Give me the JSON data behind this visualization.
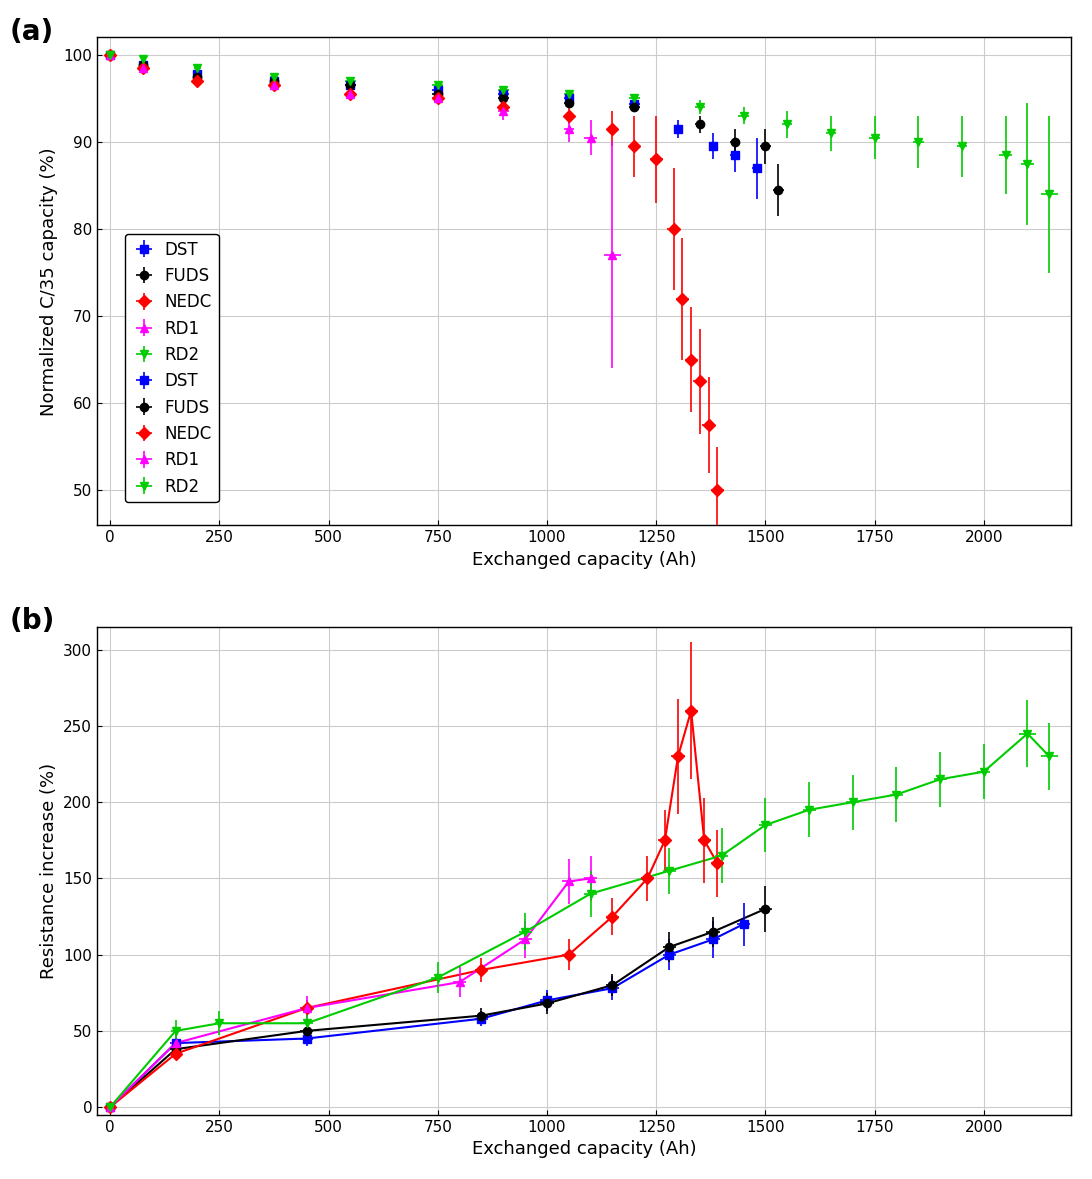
{
  "panel_a": {
    "xlabel": "Exchanged capacity (Ah)",
    "ylabel": "Normalized C/35 capacity (%)",
    "ylim": [
      46,
      102
    ],
    "xlim": [
      -30,
      2200
    ],
    "yticks": [
      50,
      60,
      70,
      80,
      90,
      100
    ],
    "xticks": [
      0,
      250,
      500,
      750,
      1000,
      1250,
      1500,
      1750,
      2000
    ],
    "DST": {
      "color": "#0000FF",
      "marker": "s",
      "x": [
        0,
        75,
        200,
        375,
        550,
        750,
        900,
        1050,
        1200,
        1300,
        1380,
        1430,
        1480
      ],
      "y": [
        100,
        98.8,
        97.8,
        97.0,
        96.5,
        96.0,
        95.5,
        95.0,
        94.3,
        91.5,
        89.5,
        88.5,
        87.0
      ],
      "xerr": [
        0,
        5,
        8,
        10,
        12,
        12,
        12,
        12,
        12,
        10,
        10,
        10,
        10
      ],
      "yerr": [
        0,
        0.3,
        0.3,
        0.3,
        0.3,
        0.3,
        0.3,
        0.4,
        0.5,
        1.0,
        1.5,
        2.0,
        3.5
      ]
    },
    "FUDS": {
      "color": "#000000",
      "marker": "o",
      "x": [
        0,
        75,
        200,
        375,
        550,
        750,
        900,
        1050,
        1200,
        1350,
        1430,
        1500,
        1530
      ],
      "y": [
        100,
        98.8,
        97.5,
        97.0,
        96.5,
        95.5,
        95.0,
        94.5,
        94.0,
        92.0,
        90.0,
        89.5,
        84.5
      ],
      "xerr": [
        0,
        5,
        8,
        10,
        12,
        12,
        12,
        12,
        12,
        12,
        12,
        12,
        12
      ],
      "yerr": [
        0,
        0.3,
        0.3,
        0.3,
        0.3,
        0.3,
        0.3,
        0.4,
        0.5,
        1.0,
        1.5,
        2.0,
        3.0
      ]
    },
    "NEDC": {
      "color": "#FF0000",
      "marker": "D",
      "x": [
        0,
        75,
        200,
        375,
        550,
        750,
        900,
        1050,
        1150,
        1200,
        1250,
        1290,
        1310,
        1330,
        1350,
        1370,
        1390
      ],
      "y": [
        100,
        98.5,
        97.0,
        96.5,
        95.5,
        95.0,
        94.0,
        93.0,
        91.5,
        89.5,
        88.0,
        80.0,
        72.0,
        65.0,
        62.5,
        57.5,
        50.0
      ],
      "xerr": [
        0,
        5,
        8,
        10,
        12,
        12,
        12,
        12,
        12,
        12,
        15,
        15,
        15,
        15,
        15,
        15,
        15
      ],
      "yerr": [
        0,
        0.3,
        0.3,
        0.3,
        0.3,
        0.3,
        0.5,
        1.0,
        2.0,
        3.5,
        5.0,
        7.0,
        7.0,
        6.0,
        6.0,
        5.5,
        5.0
      ]
    },
    "RD1": {
      "color": "#FF00FF",
      "marker": "^",
      "x": [
        0,
        75,
        375,
        550,
        750,
        900,
        1050,
        1100,
        1150
      ],
      "y": [
        100,
        98.5,
        96.5,
        95.5,
        95.0,
        93.5,
        91.5,
        90.5,
        77.0
      ],
      "xerr": [
        0,
        5,
        10,
        12,
        12,
        12,
        12,
        15,
        20
      ],
      "yerr": [
        0,
        0.3,
        0.5,
        0.5,
        0.5,
        1.0,
        1.5,
        2.0,
        13.0
      ]
    },
    "RD2": {
      "color": "#00CC00",
      "marker": "v",
      "x": [
        0,
        75,
        200,
        375,
        550,
        750,
        900,
        1050,
        1200,
        1350,
        1450,
        1550,
        1650,
        1750,
        1850,
        1950,
        2050,
        2100,
        2150
      ],
      "y": [
        100,
        99.5,
        98.5,
        97.5,
        97.0,
        96.5,
        96.0,
        95.5,
        95.0,
        94.0,
        93.0,
        92.0,
        91.0,
        90.5,
        90.0,
        89.5,
        88.5,
        87.5,
        84.0
      ],
      "xerr": [
        0,
        5,
        8,
        10,
        12,
        12,
        12,
        12,
        12,
        12,
        12,
        12,
        12,
        12,
        12,
        12,
        15,
        15,
        20
      ],
      "yerr": [
        0,
        0.3,
        0.3,
        0.3,
        0.3,
        0.3,
        0.3,
        0.4,
        0.5,
        0.8,
        1.0,
        1.5,
        2.0,
        2.5,
        3.0,
        3.5,
        4.5,
        7.0,
        9.0
      ]
    }
  },
  "panel_b": {
    "xlabel": "Exchanged capacity (Ah)",
    "ylabel": "Resistance increase (%)",
    "ylim": [
      -5,
      315
    ],
    "xlim": [
      -30,
      2200
    ],
    "yticks": [
      0,
      50,
      100,
      150,
      200,
      250,
      300
    ],
    "xticks": [
      0,
      250,
      500,
      750,
      1000,
      1250,
      1500,
      1750,
      2000
    ],
    "DST": {
      "color": "#0000FF",
      "marker": "s",
      "x": [
        0,
        150,
        450,
        850,
        1000,
        1150,
        1280,
        1380,
        1450
      ],
      "y": [
        0,
        42,
        45,
        58,
        70,
        78,
        100,
        110,
        120
      ],
      "xerr": [
        0,
        12,
        15,
        15,
        15,
        15,
        15,
        15,
        15
      ],
      "yerr": [
        0,
        5,
        5,
        5,
        7,
        8,
        10,
        12,
        14
      ]
    },
    "FUDS": {
      "color": "#000000",
      "marker": "o",
      "x": [
        0,
        150,
        450,
        850,
        1000,
        1150,
        1280,
        1380,
        1500
      ],
      "y": [
        0,
        38,
        50,
        60,
        68,
        80,
        105,
        115,
        130
      ],
      "xerr": [
        0,
        12,
        15,
        15,
        15,
        15,
        15,
        15,
        15
      ],
      "yerr": [
        0,
        4,
        5,
        5,
        7,
        7,
        10,
        10,
        15
      ]
    },
    "NEDC": {
      "color": "#FF0000",
      "marker": "D",
      "x": [
        0,
        150,
        450,
        850,
        1050,
        1150,
        1230,
        1270,
        1300,
        1330,
        1360,
        1390
      ],
      "y": [
        0,
        35,
        65,
        90,
        100,
        125,
        150,
        175,
        230,
        260,
        175,
        160
      ],
      "xerr": [
        0,
        10,
        15,
        15,
        15,
        15,
        15,
        15,
        15,
        15,
        15,
        15
      ],
      "yerr": [
        0,
        4,
        5,
        8,
        10,
        12,
        15,
        20,
        38,
        45,
        28,
        22
      ]
    },
    "RD1": {
      "color": "#FF00FF",
      "marker": "^",
      "x": [
        0,
        150,
        450,
        800,
        950,
        1050,
        1100
      ],
      "y": [
        0,
        42,
        65,
        82,
        110,
        148,
        150
      ],
      "xerr": [
        0,
        10,
        15,
        15,
        15,
        15,
        15
      ],
      "yerr": [
        0,
        5,
        8,
        10,
        12,
        15,
        15
      ]
    },
    "RD2": {
      "color": "#00CC00",
      "marker": "v",
      "x": [
        0,
        150,
        250,
        450,
        750,
        950,
        1100,
        1280,
        1400,
        1500,
        1600,
        1700,
        1800,
        1900,
        2000,
        2100,
        2150
      ],
      "y": [
        0,
        50,
        55,
        55,
        85,
        115,
        140,
        155,
        165,
        185,
        195,
        200,
        205,
        215,
        220,
        245,
        230
      ],
      "xerr": [
        0,
        10,
        10,
        15,
        15,
        15,
        15,
        15,
        15,
        15,
        15,
        15,
        15,
        15,
        15,
        20,
        20
      ],
      "yerr": [
        0,
        7,
        8,
        8,
        10,
        12,
        15,
        15,
        18,
        18,
        18,
        18,
        18,
        18,
        18,
        22,
        22
      ]
    }
  },
  "legend": {
    "series": [
      "DST",
      "FUDS",
      "NEDC",
      "RD1",
      "RD2"
    ],
    "colors": [
      "#0000FF",
      "#000000",
      "#FF0000",
      "#FF00FF",
      "#00CC00"
    ],
    "markers": [
      "s",
      "o",
      "D",
      "^",
      "v"
    ]
  }
}
